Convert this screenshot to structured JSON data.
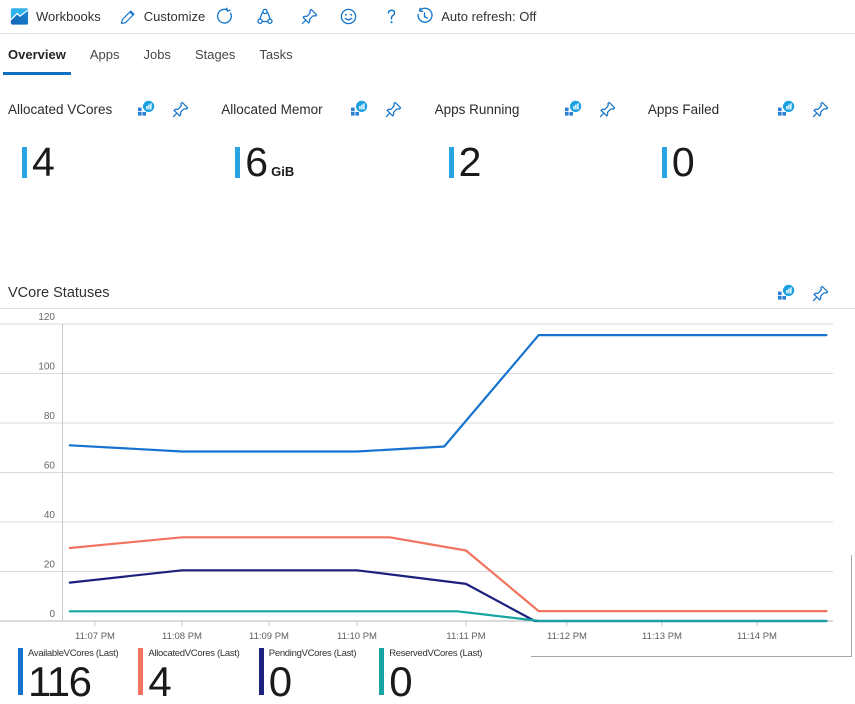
{
  "toolbar": {
    "app_label": "Workbooks",
    "customize_label": "Customize",
    "auto_refresh_label": "Auto refresh: Off",
    "icon_color": "#1374c9"
  },
  "tabs": [
    {
      "label": "Overview",
      "active": true
    },
    {
      "label": "Apps",
      "active": false
    },
    {
      "label": "Jobs",
      "active": false
    },
    {
      "label": "Stages",
      "active": false
    },
    {
      "label": "Tasks",
      "active": false
    }
  ],
  "tiles": [
    {
      "title": "Allocated VCores",
      "value": "4",
      "unit": "",
      "bar_color": "#29a4e3"
    },
    {
      "title": "Allocated Memor",
      "value": "6",
      "unit": "GiB",
      "bar_color": "#29a4e3"
    },
    {
      "title": "Apps Running",
      "value": "2",
      "unit": "",
      "bar_color": "#29a4e3"
    },
    {
      "title": "Apps Failed",
      "value": "0",
      "unit": "",
      "bar_color": "#29a4e3"
    }
  ],
  "chart_data": {
    "type": "line",
    "title": "VCore Statuses",
    "x_tick_labels": [
      "11:07 PM",
      "11:08 PM",
      "11:09 PM",
      "11:10 PM",
      "11:11 PM",
      "11:12 PM",
      "11:13 PM",
      "11:14 PM"
    ],
    "x_unit": "minutes after 11:07 PM",
    "ylim": [
      0,
      120
    ],
    "y_ticks": [
      0,
      20,
      40,
      60,
      80,
      100,
      120
    ],
    "grid": true,
    "legend_position": "bottom",
    "series": [
      {
        "name": "AvailableVCores",
        "legend": "AvailableVCores (Last)",
        "last": "116",
        "color": "#1673cf",
        "points": [
          [
            -0.29,
            71
          ],
          [
            1,
            68.5
          ],
          [
            3,
            68.5
          ],
          [
            3.8,
            70.5
          ],
          [
            4.72,
            115.5
          ],
          [
            7.73,
            115.5
          ]
        ]
      },
      {
        "name": "AllocatedVCores",
        "legend": "AllocatedVCores (Last)",
        "last": "4",
        "color": "#f2735f",
        "points": [
          [
            -0.29,
            29.5
          ],
          [
            1,
            33.8
          ],
          [
            3.3,
            33.8
          ],
          [
            4,
            28.5
          ],
          [
            4.72,
            4
          ],
          [
            7.73,
            4
          ]
        ]
      },
      {
        "name": "PendingVCores",
        "legend": "PendingVCores (Last)",
        "last": "0",
        "color": "#1c217d",
        "points": [
          [
            -0.29,
            15.5
          ],
          [
            1,
            20.5
          ],
          [
            3,
            20.5
          ],
          [
            4,
            15
          ],
          [
            4.68,
            0
          ],
          [
            7.73,
            0
          ]
        ]
      },
      {
        "name": "ReservedVCores",
        "legend": "ReservedVCores (Last)",
        "last": "0",
        "color": "#16a5a3",
        "points": [
          [
            -0.29,
            3.9
          ],
          [
            3.92,
            3.9
          ],
          [
            4.73,
            0
          ],
          [
            7.73,
            0
          ]
        ]
      }
    ]
  }
}
